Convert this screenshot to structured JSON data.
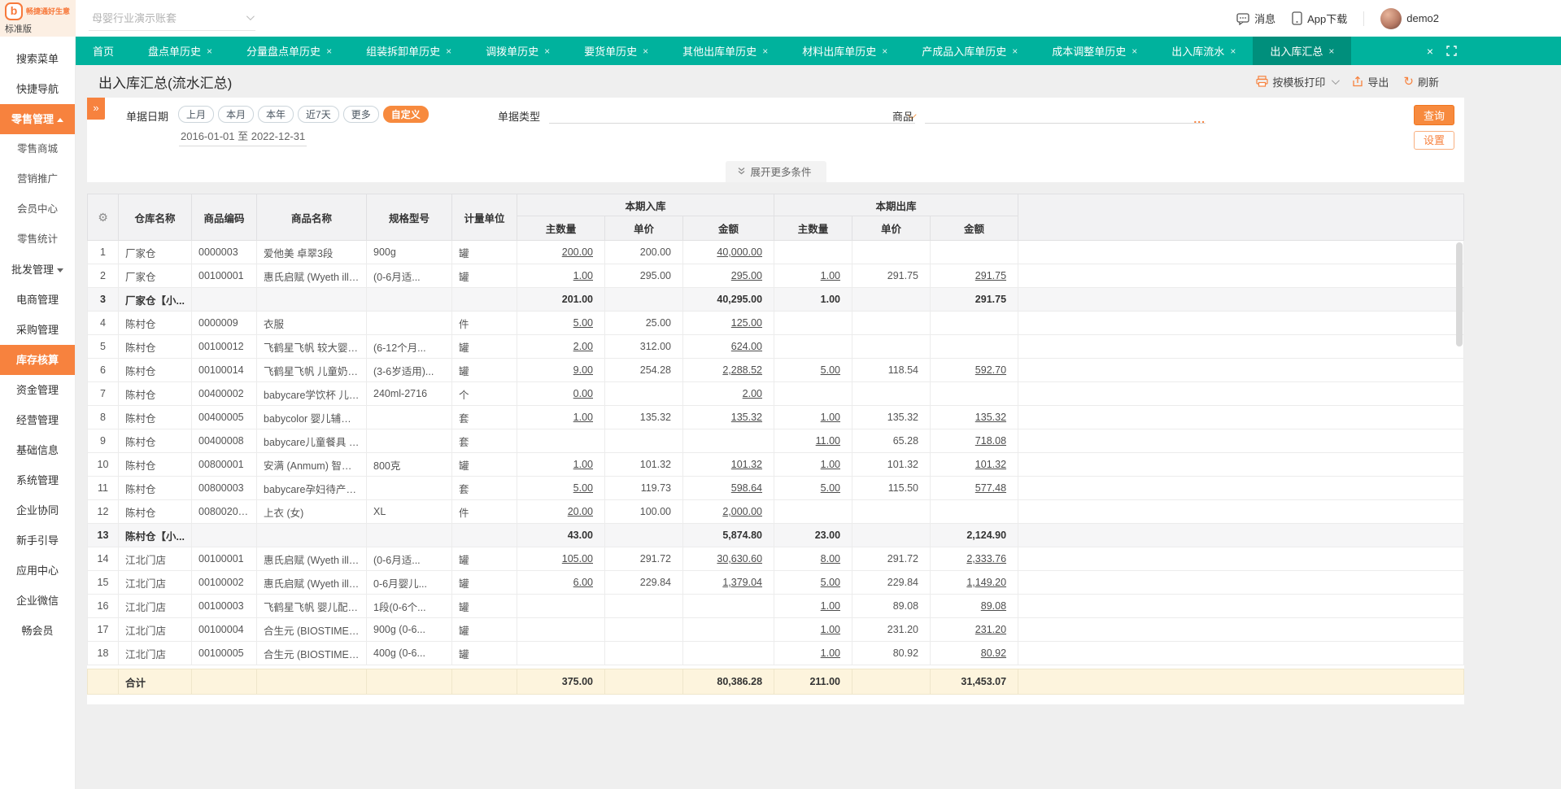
{
  "icons": {
    "gear": "⚙",
    "close": "×",
    "collapse": "»",
    "refresh": "↻"
  },
  "colors": {
    "teal": "#00b29d",
    "teal_active": "#008f7c",
    "orange": "#f7823e"
  },
  "topbar": {
    "brand": {
      "name": "畅捷通好生意",
      "edition": "标准版",
      "logo_glyph": "b"
    },
    "account_selector": "母婴行业演示账套",
    "messages": "消息",
    "app_download": "App下载",
    "username": "demo2"
  },
  "tabbar": {
    "tabs": [
      {
        "label": "首页",
        "closable": false,
        "active": false
      },
      {
        "label": "盘点单历史",
        "closable": true,
        "active": false
      },
      {
        "label": "分量盘点单历史",
        "closable": true,
        "active": false
      },
      {
        "label": "组装拆卸单历史",
        "closable": true,
        "active": false
      },
      {
        "label": "调拨单历史",
        "closable": true,
        "active": false
      },
      {
        "label": "要货单历史",
        "closable": true,
        "active": false
      },
      {
        "label": "其他出库单历史",
        "closable": true,
        "active": false
      },
      {
        "label": "材料出库单历史",
        "closable": true,
        "active": false
      },
      {
        "label": "产成品入库单历史",
        "closable": true,
        "active": false
      },
      {
        "label": "成本调整单历史",
        "closable": true,
        "active": false
      },
      {
        "label": "出入库流水",
        "closable": true,
        "active": false
      },
      {
        "label": "出入库汇总",
        "closable": true,
        "active": true
      }
    ]
  },
  "sidebar": {
    "items": [
      {
        "label": "搜索菜单"
      },
      {
        "label": "快捷导航"
      },
      {
        "label": "零售管理",
        "active": true,
        "arrow": "up"
      },
      {
        "label": "零售商城",
        "sub": true
      },
      {
        "label": "营销推广",
        "sub": true
      },
      {
        "label": "会员中心",
        "sub": true
      },
      {
        "label": "零售统计",
        "sub": true
      },
      {
        "label": "批发管理",
        "arrow": "down"
      },
      {
        "label": "电商管理"
      },
      {
        "label": "采购管理"
      },
      {
        "label": "库存核算",
        "active": true
      },
      {
        "label": "资金管理"
      },
      {
        "label": "经营管理"
      },
      {
        "label": "基础信息"
      },
      {
        "label": "系统管理"
      },
      {
        "label": "企业协同"
      },
      {
        "label": "新手引导"
      },
      {
        "label": "应用中心"
      },
      {
        "label": "企业微信"
      },
      {
        "label": "畅会员"
      }
    ]
  },
  "page": {
    "title": "出入库汇总(流水汇总)",
    "actions": {
      "print": "按模板打印",
      "export": "导出",
      "refresh": "刷新"
    }
  },
  "filters": {
    "date": {
      "label": "单据日期",
      "presets": [
        "上月",
        "本月",
        "本年",
        "近7天",
        "更多"
      ],
      "custom": "自定义",
      "range": "2016-01-01 至 2022-12-31"
    },
    "doc_type": {
      "label": "单据类型",
      "value": ""
    },
    "product": {
      "label": "商品",
      "value": "",
      "more": "..."
    },
    "search": "查询",
    "settings": "设置",
    "expand_more": "展开更多条件"
  },
  "table": {
    "headers": {
      "warehouse": "仓库名称",
      "code": "商品编码",
      "product": "商品名称",
      "spec": "规格型号",
      "unit": "计量单位",
      "inbound_group": "本期入库",
      "outbound_group": "本期出库",
      "qty": "主数量",
      "price": "单价",
      "amount": "金额"
    },
    "rows": [
      {
        "no": "1",
        "warehouse": "厂家仓",
        "code": "0000003",
        "product": "爱他美 卓翠3段",
        "spec": "900g",
        "unit": "罐",
        "in_qty": "200.00",
        "in_price": "200.00",
        "in_amount": "40,000.00",
        "out_qty": "",
        "out_price": "",
        "out_amount": ""
      },
      {
        "no": "2",
        "warehouse": "厂家仓",
        "code": "00100001",
        "product": "惠氏启赋 (Wyeth illu...",
        "spec": "(0-6月适...",
        "unit": "罐",
        "in_qty": "1.00",
        "in_price": "295.00",
        "in_amount": "295.00",
        "out_qty": "1.00",
        "out_price": "291.75",
        "out_amount": "291.75"
      },
      {
        "no": "3",
        "subtotal": true,
        "warehouse": "厂家仓【小...",
        "code": "",
        "product": "",
        "spec": "",
        "unit": "",
        "in_qty": "201.00",
        "in_price": "",
        "in_amount": "40,295.00",
        "out_qty": "1.00",
        "out_price": "",
        "out_amount": "291.75"
      },
      {
        "no": "4",
        "warehouse": "陈村仓",
        "code": "0000009",
        "product": "衣服",
        "spec": "",
        "unit": "件",
        "in_qty": "5.00",
        "in_price": "25.00",
        "in_amount": "125.00",
        "out_qty": "",
        "out_price": "",
        "out_amount": ""
      },
      {
        "no": "5",
        "warehouse": "陈村仓",
        "code": "00100012",
        "product": "飞鹤星飞帆 较大婴儿配...",
        "spec": "(6-12个月...",
        "unit": "罐",
        "in_qty": "2.00",
        "in_price": "312.00",
        "in_amount": "624.00",
        "out_qty": "",
        "out_price": "",
        "out_amount": ""
      },
      {
        "no": "6",
        "warehouse": "陈村仓",
        "code": "00100014",
        "product": "飞鹤星飞帆 儿童奶粉 4...",
        "spec": "(3-6岁适用)...",
        "unit": "罐",
        "in_qty": "9.00",
        "in_price": "254.28",
        "in_amount": "2,288.52",
        "out_qty": "5.00",
        "out_price": "118.54",
        "out_amount": "592.70"
      },
      {
        "no": "7",
        "warehouse": "陈村仓",
        "code": "00400002",
        "product": "babycare学饮杯 儿童...",
        "spec": "240ml-2716",
        "unit": "个",
        "in_qty": "0.00",
        "in_price": "",
        "in_amount": "2.00",
        "out_qty": "",
        "out_price": "",
        "out_amount": ""
      },
      {
        "no": "8",
        "warehouse": "陈村仓",
        "code": "00400005",
        "product": "babycolor 婴儿辅食机 ...",
        "spec": "",
        "unit": "套",
        "in_qty": "1.00",
        "in_price": "135.32",
        "in_amount": "135.32",
        "out_qty": "1.00",
        "out_price": "135.32",
        "out_amount": "135.32"
      },
      {
        "no": "9",
        "warehouse": "陈村仓",
        "code": "00400008",
        "product": "babycare儿童餐具 婴...",
        "spec": "",
        "unit": "套",
        "in_qty": "",
        "in_price": "",
        "in_amount": "",
        "out_qty": "11.00",
        "out_price": "65.28",
        "out_amount": "718.08"
      },
      {
        "no": "10",
        "warehouse": "陈村仓",
        "code": "00800001",
        "product": "安满 (Anmum) 智孕...",
        "spec": "800克",
        "unit": "罐",
        "in_qty": "1.00",
        "in_price": "101.32",
        "in_amount": "101.32",
        "out_qty": "1.00",
        "out_price": "101.32",
        "out_amount": "101.32"
      },
      {
        "no": "11",
        "warehouse": "陈村仓",
        "code": "00800003",
        "product": "babycare孕妇待产包 ...",
        "spec": "",
        "unit": "套",
        "in_qty": "5.00",
        "in_price": "119.73",
        "in_amount": "598.64",
        "out_qty": "5.00",
        "out_price": "115.50",
        "out_amount": "577.48"
      },
      {
        "no": "12",
        "warehouse": "陈村仓",
        "code": "008002000...",
        "product": "上衣 (女)",
        "spec": "XL",
        "unit": "件",
        "in_qty": "20.00",
        "in_price": "100.00",
        "in_amount": "2,000.00",
        "out_qty": "",
        "out_price": "",
        "out_amount": ""
      },
      {
        "no": "13",
        "subtotal": true,
        "warehouse": "陈村仓【小...",
        "code": "",
        "product": "",
        "spec": "",
        "unit": "",
        "in_qty": "43.00",
        "in_price": "",
        "in_amount": "5,874.80",
        "out_qty": "23.00",
        "out_price": "",
        "out_amount": "2,124.90"
      },
      {
        "no": "14",
        "warehouse": "江北门店",
        "code": "00100001",
        "product": "惠氏启赋 (Wyeth illu...",
        "spec": "(0-6月适...",
        "unit": "罐",
        "in_qty": "105.00",
        "in_price": "291.72",
        "in_amount": "30,630.60",
        "out_qty": "8.00",
        "out_price": "291.72",
        "out_amount": "2,333.76"
      },
      {
        "no": "15",
        "warehouse": "江北门店",
        "code": "00100002",
        "product": "惠氏启赋 (Wyeth illu...",
        "spec": "0-6月婴儿...",
        "unit": "罐",
        "in_qty": "6.00",
        "in_price": "229.84",
        "in_amount": "1,379.04",
        "out_qty": "5.00",
        "out_price": "229.84",
        "out_amount": "1,149.20"
      },
      {
        "no": "16",
        "warehouse": "江北门店",
        "code": "00100003",
        "product": "飞鹤星飞帆 婴儿配方奶...",
        "spec": "1段(0-6个...",
        "unit": "罐",
        "in_qty": "",
        "in_price": "",
        "in_amount": "",
        "out_qty": "1.00",
        "out_price": "89.08",
        "out_amount": "89.08"
      },
      {
        "no": "17",
        "warehouse": "江北门店",
        "code": "00100004",
        "product": "合生元 (BIOSTIME) ...",
        "spec": "900g (0-6...",
        "unit": "罐",
        "in_qty": "",
        "in_price": "",
        "in_amount": "",
        "out_qty": "1.00",
        "out_price": "231.20",
        "out_amount": "231.20"
      },
      {
        "no": "18",
        "warehouse": "江北门店",
        "code": "00100005",
        "product": "合生元 (BIOSTIME) ...",
        "spec": "400g (0-6...",
        "unit": "罐",
        "in_qty": "",
        "in_price": "",
        "in_amount": "",
        "out_qty": "1.00",
        "out_price": "80.92",
        "out_amount": "80.92"
      }
    ],
    "footer": {
      "label": "合计",
      "in_qty": "375.00",
      "in_amount": "80,386.28",
      "out_qty": "211.00",
      "out_amount": "31,453.07"
    }
  }
}
